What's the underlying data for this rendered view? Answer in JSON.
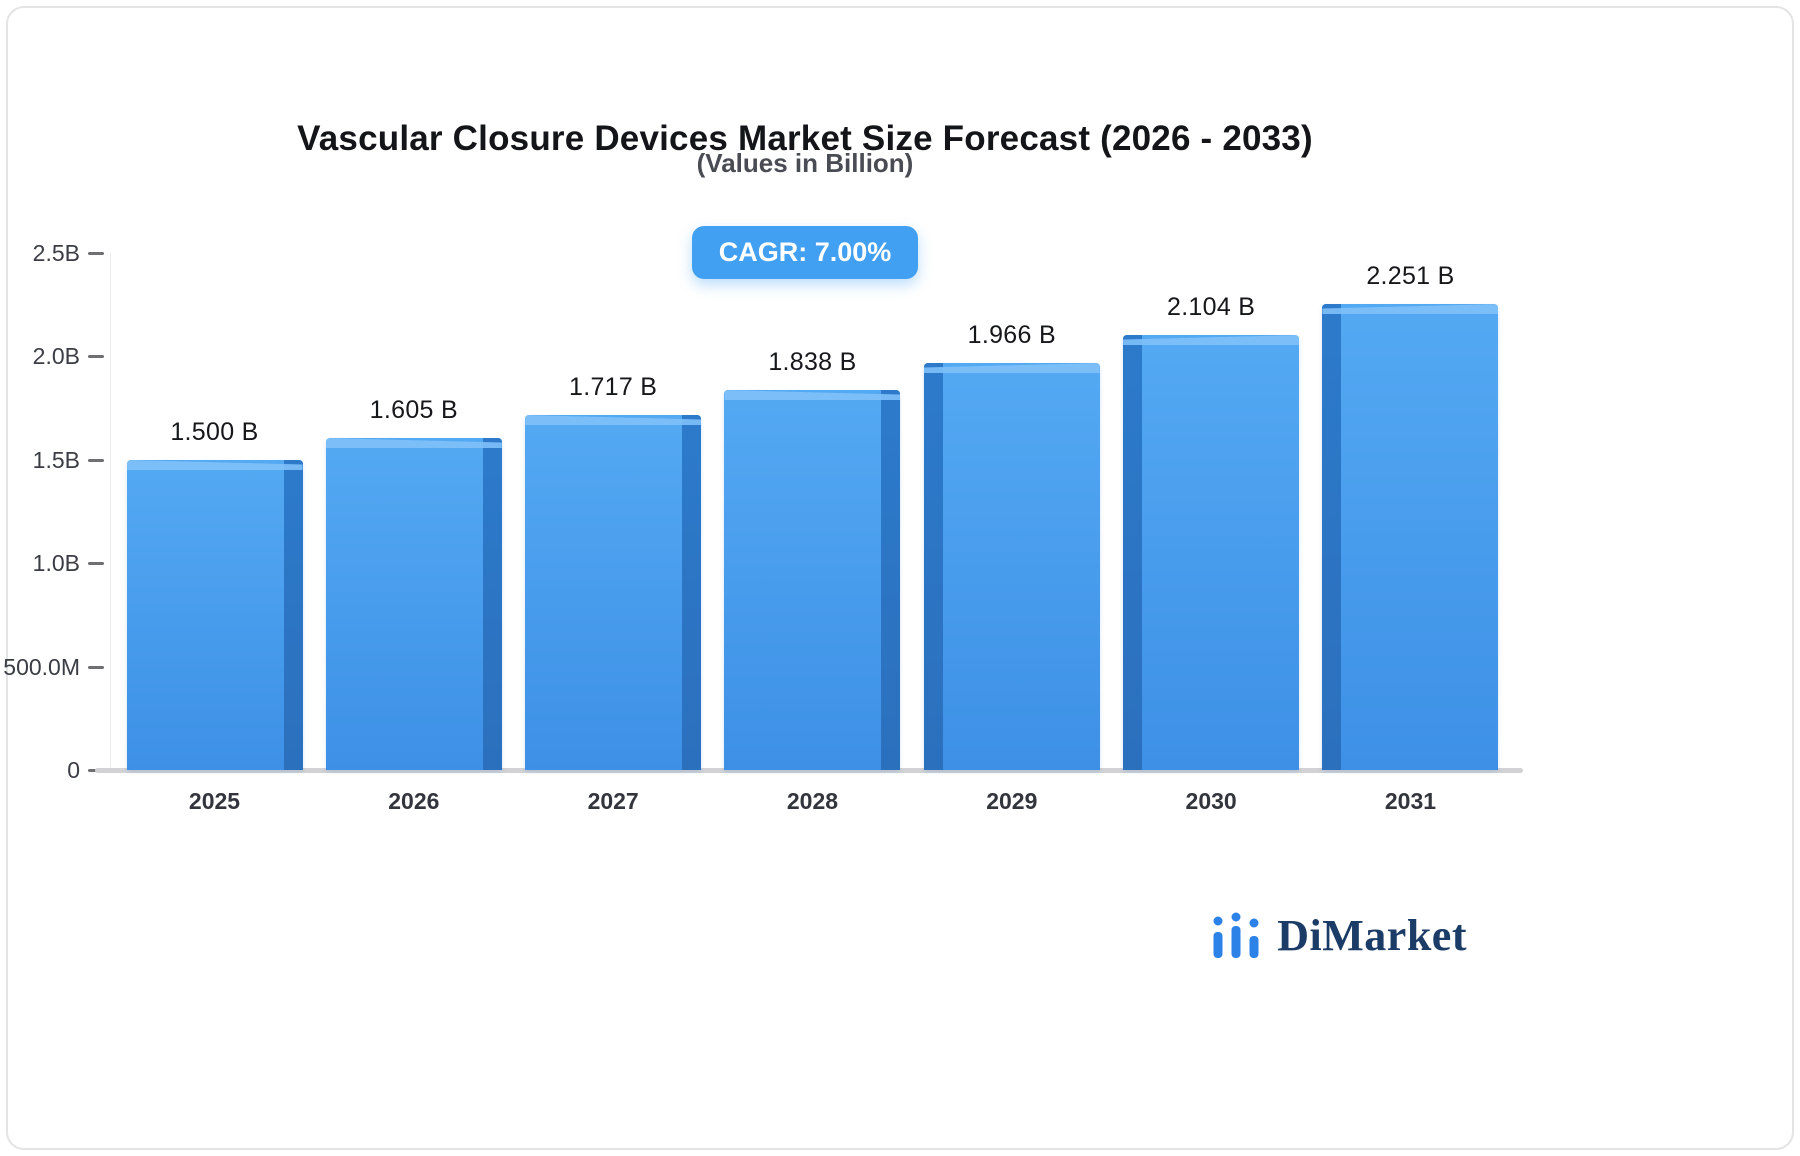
{
  "header": {
    "title": "Vascular Closure Devices Market Size Forecast (2026 - 2033)",
    "subtitle": "(Values in Billion)",
    "cagr_badge": "CAGR: 7.00%"
  },
  "chart_data": {
    "type": "bar",
    "title": "Vascular Closure Devices Market Size Forecast (2026 - 2033)",
    "subtitle": "(Values in Billion)",
    "categories": [
      "2025",
      "2026",
      "2027",
      "2028",
      "2029",
      "2030",
      "2031"
    ],
    "values": [
      1.5,
      1.605,
      1.717,
      1.838,
      1.966,
      2.104,
      2.251
    ],
    "value_labels": [
      "1.500 B",
      "1.605 B",
      "1.717 B",
      "1.838 B",
      "1.966 B",
      "2.104 B",
      "2.251 B"
    ],
    "cagr_annotation": "CAGR: 7.00%",
    "xlabel": "",
    "ylabel": "",
    "ylim": [
      0,
      2.5
    ],
    "y_ticks": [
      {
        "label": "2.5B",
        "value": 2.5
      },
      {
        "label": "2.0B",
        "value": 2.0
      },
      {
        "label": "1.5B",
        "value": 1.5
      },
      {
        "label": "1.0B",
        "value": 1.0
      },
      {
        "label": "500.0M",
        "value": 0.5
      },
      {
        "label": "0",
        "value": 0
      }
    ],
    "grid": false,
    "legend": false,
    "bar_3d_sides": [
      "right",
      "right",
      "right",
      "right",
      "left",
      "left",
      "left"
    ],
    "colors": {
      "bar_gradient_top": "#54a9f3",
      "bar_gradient_bottom": "#3d90e6",
      "bar_side_face": "#2d7acb",
      "bar_top_face": "#7fc0f8",
      "badge_background": "#42a0f3",
      "axis_line": "#d2d2d4",
      "brand_navy": "#1b3c66",
      "brand_blue": "#2d82e8"
    }
  },
  "footer": {
    "brand": "DiMarket"
  }
}
